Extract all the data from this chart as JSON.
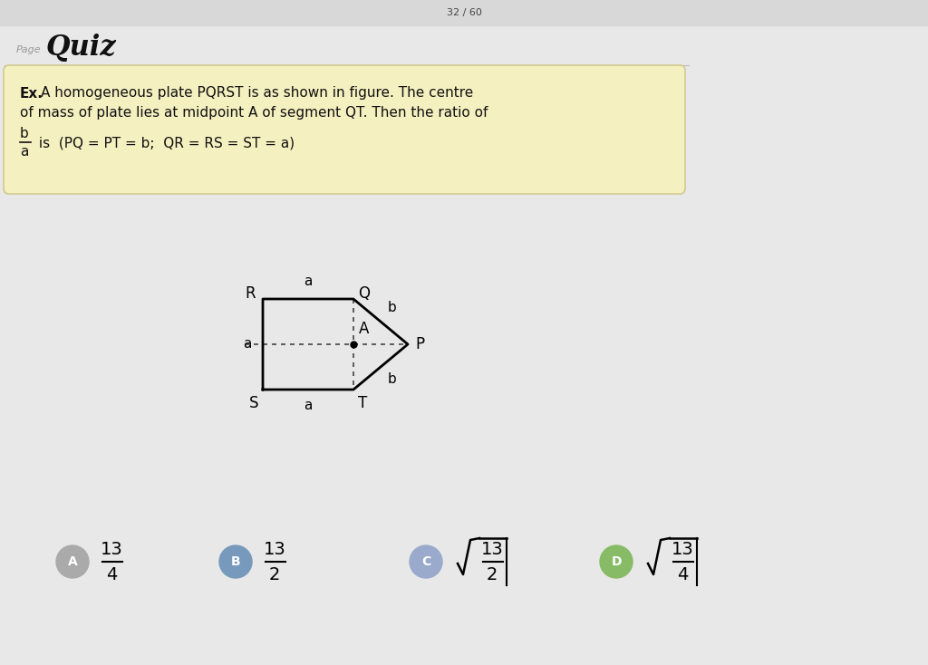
{
  "bg_color": "#e8e8e8",
  "toolbar_color": "#d8d8d8",
  "main_bg": "#e8e8e8",
  "title_text": "Quiz",
  "title_prefix": "Page",
  "question_box_color": "#f5f0c0",
  "question_box_edge": "#d0ca90",
  "question_text_line1": "Ex. A homogeneous plate PQRST is as shown in figure. The centre",
  "question_text_line2": "of mass of plate lies at midpoint A of segment QT. Then the ratio of",
  "fraction_b": "b",
  "fraction_a": "a",
  "question_text_line3": " is  (PQ = PT = b;  QR = RS = ST = a)",
  "options": [
    {
      "label": "A",
      "type": "fraction",
      "numerator": "13",
      "denominator": "4",
      "selected": false,
      "circle_color": "#aaaaaa"
    },
    {
      "label": "B",
      "type": "fraction",
      "numerator": "13",
      "denominator": "2",
      "selected": false,
      "circle_color": "#7799bb"
    },
    {
      "label": "C",
      "type": "sqrt_fraction",
      "numerator": "13",
      "denominator": "2",
      "selected": false,
      "circle_color": "#99aacc"
    },
    {
      "label": "D",
      "type": "sqrt_fraction",
      "numerator": "13",
      "denominator": "4",
      "selected": true,
      "circle_color": "#88bb66"
    }
  ]
}
